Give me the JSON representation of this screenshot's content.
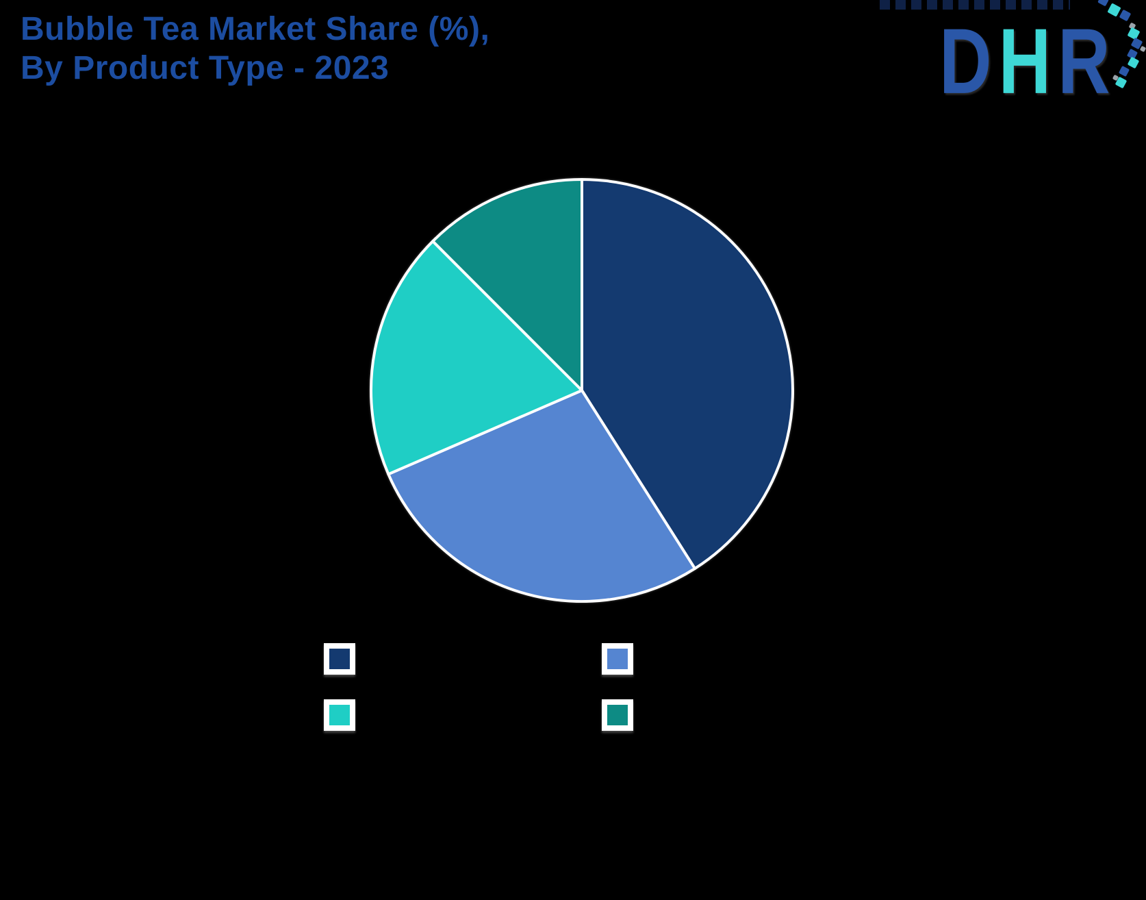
{
  "header": {
    "title_line1": "Bubble Tea Market Share (%),",
    "title_line2": "By Product Type - 2023",
    "title_color": "#1C4DA1"
  },
  "logo": {
    "letters": [
      "D",
      "H",
      "R"
    ],
    "blue": "#2A57A8",
    "cyan": "#3ED8D6"
  },
  "chart_data": {
    "type": "pie",
    "title": "Bubble Tea Market Share (%), By Product Type - 2023",
    "year": "2023",
    "unit": "%",
    "values": [
      41,
      27.5,
      19,
      12.5
    ],
    "labels": [
      "",
      "",
      "",
      ""
    ],
    "colors": [
      "#143A70",
      "#5585D1",
      "#1FCEC5",
      "#0D8B84"
    ],
    "start_angle_deg": 0,
    "direction": "clockwise",
    "slice_border_color": "#FFFFFF",
    "legend_position": "bottom",
    "legend_labels_visible": false
  },
  "legend": {
    "items": [
      {
        "label": "",
        "color": "#143A70"
      },
      {
        "label": "",
        "color": "#5585D1"
      },
      {
        "label": "",
        "color": "#1FCEC5"
      },
      {
        "label": "",
        "color": "#0D8B84"
      }
    ]
  },
  "colors": {
    "background": "#000000",
    "navy": "#143A70",
    "cornflower": "#5585D1",
    "turquoise": "#1FCEC5",
    "teal": "#0D8B84",
    "white": "#FFFFFF"
  }
}
